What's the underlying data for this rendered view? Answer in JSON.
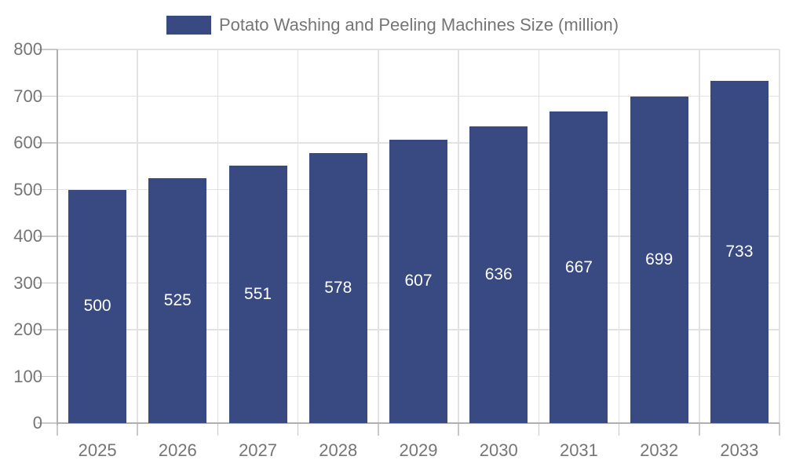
{
  "legend": {
    "label": "Potato Washing and Peeling Machines Size (million)"
  },
  "colors": {
    "bar": "#394A82",
    "grid": "#e2e2e2",
    "tick": "#c9c9c9",
    "axis_line": "#b0b0b0",
    "axis_text": "#757575",
    "bar_label": "#ffffff",
    "background": "#ffffff"
  },
  "chart_data": {
    "type": "bar",
    "title": "Potato Washing and Peeling Machines Size (million)",
    "categories": [
      "2025",
      "2026",
      "2027",
      "2028",
      "2029",
      "2030",
      "2031",
      "2032",
      "2033"
    ],
    "values": [
      500,
      525,
      551,
      578,
      607,
      636,
      667,
      699,
      733
    ],
    "xlabel": "",
    "ylabel": "",
    "ylim": [
      0,
      800
    ],
    "yticks": [
      0,
      100,
      200,
      300,
      400,
      500,
      600,
      700,
      800
    ],
    "grid": true,
    "vertical_grid": true,
    "legend_position": "top-center",
    "value_labels": "inside-center"
  }
}
